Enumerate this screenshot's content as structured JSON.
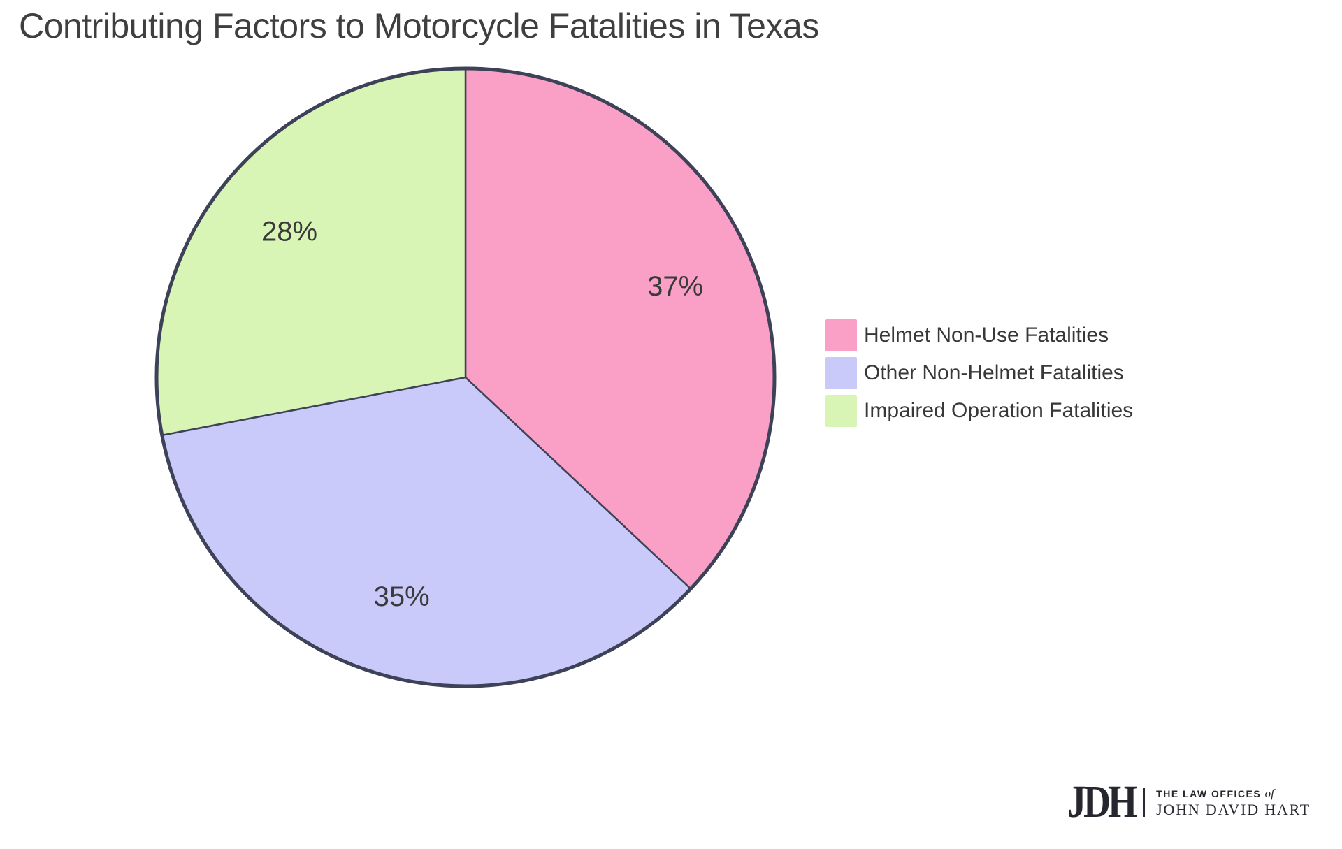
{
  "chart_data": {
    "type": "pie",
    "title": "Contributing Factors to Motorcycle Fatalities in Texas",
    "series": [
      {
        "label": "Helmet Non-Use Fatalities",
        "value": 37,
        "color": "#faa0c6"
      },
      {
        "label": "Other Non-Helmet Fatalities",
        "value": 35,
        "color": "#c9caf9"
      },
      {
        "label": "Impaired Operation Fatalities",
        "value": 28,
        "color": "#d8f5b6"
      }
    ],
    "labels": [
      "37%",
      "35%",
      "28%"
    ],
    "unit": "percent",
    "start_angle": "top",
    "direction": "clockwise",
    "slice_border_color": "#3e4258",
    "label_color": "#3a3a3a",
    "legend_position": "right",
    "background": "#ffffff"
  },
  "logo": {
    "monogram": "JDH",
    "tagline_prefix": "THE LAW OFFICES",
    "tagline_of": "of",
    "name": "JOHN DAVID HART"
  }
}
